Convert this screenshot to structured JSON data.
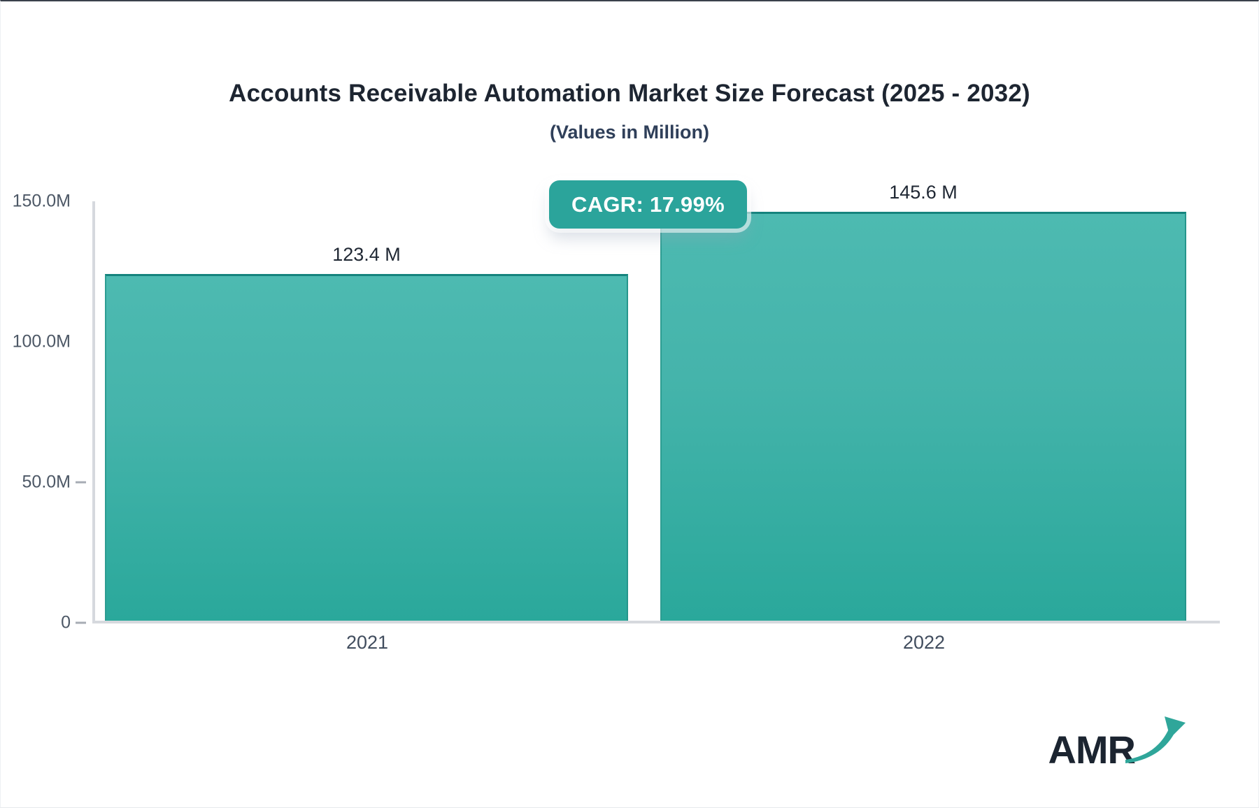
{
  "header": {
    "title": "Accounts Receivable Automation Market Size Forecast (2025 - 2032)",
    "subtitle": "(Values in Million)"
  },
  "cagr_badge": {
    "label": "CAGR: 17.99%"
  },
  "logo": {
    "text": "AMR"
  },
  "colors": {
    "bar_top": "#4dbab1",
    "bar_bottom": "#2aa89b",
    "bar_border": "#15837d",
    "badge": "#2ba49b",
    "axis": "#d6d9de",
    "title_text": "#1d2531",
    "subtitle_text": "#2f3f59",
    "logo_arrow": "#2fa69a"
  },
  "chart_data": {
    "type": "bar",
    "title": "Accounts Receivable Automation Market Size Forecast (2025 - 2032)",
    "subtitle": "(Values in Million)",
    "categories": [
      "2021",
      "2022"
    ],
    "values": [
      123.4,
      145.6
    ],
    "value_labels": [
      "123.4 M",
      "145.6 M"
    ],
    "xlabel": "",
    "ylabel": "",
    "ylim": [
      0,
      150
    ],
    "y_ticks": [
      {
        "value": 0,
        "label": "0",
        "tick_mark": true
      },
      {
        "value": 50,
        "label": "50.0M",
        "tick_mark": true
      },
      {
        "value": 100,
        "label": "100.0M",
        "tick_mark": false
      },
      {
        "value": 150,
        "label": "150.0M",
        "tick_mark": false
      }
    ],
    "grid": false,
    "legend": false,
    "annotations": [
      "CAGR: 17.99%"
    ]
  }
}
